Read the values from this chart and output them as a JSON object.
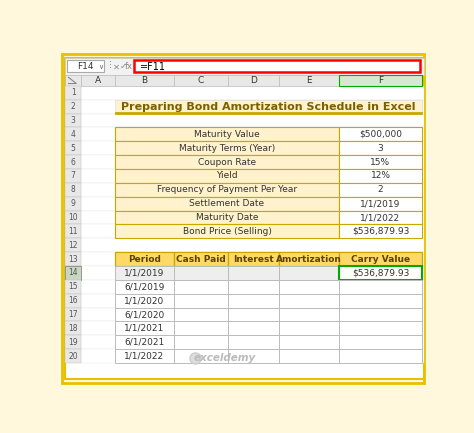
{
  "title": "Preparing Bond Amortization Schedule in Excel",
  "formula_bar_text": "=F11",
  "formula_bar_cell": "F14",
  "info_rows": [
    [
      "Maturity Value",
      "$500,000"
    ],
    [
      "Maturity Terms (Year)",
      "3"
    ],
    [
      "Coupon Rate",
      "15%"
    ],
    [
      "Yield",
      "12%"
    ],
    [
      "Frequency of Payment Per Year",
      "2"
    ],
    [
      "Settlement Date",
      "1/1/2019"
    ],
    [
      "Maturity Date",
      "1/1/2022"
    ],
    [
      "Bond Price (Selling)",
      "$536,879.93"
    ]
  ],
  "schedule_headers": [
    "Period",
    "Cash Paid",
    "Interest",
    "Amortization",
    "Carry Value"
  ],
  "schedule_rows": [
    [
      "1/1/2019",
      "",
      "",
      "",
      "$536,879.93"
    ],
    [
      "6/1/2019",
      "",
      "",
      "",
      ""
    ],
    [
      "1/1/2020",
      "",
      "",
      "",
      ""
    ],
    [
      "6/1/2020",
      "",
      "",
      "",
      ""
    ],
    [
      "1/1/2021",
      "",
      "",
      "",
      ""
    ],
    [
      "6/1/2021",
      "",
      "",
      "",
      ""
    ],
    [
      "1/1/2022",
      "",
      "",
      "",
      ""
    ]
  ],
  "outer_border_color": "#E8C000",
  "bg_color": "#FFFFFF",
  "title_bg": "#FFF2CC",
  "title_text_color": "#7B6000",
  "title_underline_color": "#C8A800",
  "info_label_bg": "#FFF2CC",
  "info_label_border": "#C8A800",
  "info_val_bg": "#FFFFFF",
  "info_val_border": "#C8A800",
  "sched_header_bg": "#FFD966",
  "sched_header_border": "#C8A800",
  "sched_header_text": "#5C4200",
  "sched_row_bg": "#FFFFFF",
  "sched_row_border": "#BBBBBB",
  "sched_row_bg_14": "#F2F2F2",
  "formula_bar_border": "#FF0000",
  "excel_top_bg": "#F2F2F2",
  "col_header_bg": "#E8E8E8",
  "col_F_bg": "#D6E8D0",
  "active_cell_border": "#00AA00",
  "row_num_bg": "#E8E8E8",
  "row_14_bg": "#EEEEEE",
  "watermark_color": "#BBBBBB",
  "outer_bg": "#FFF8DC"
}
